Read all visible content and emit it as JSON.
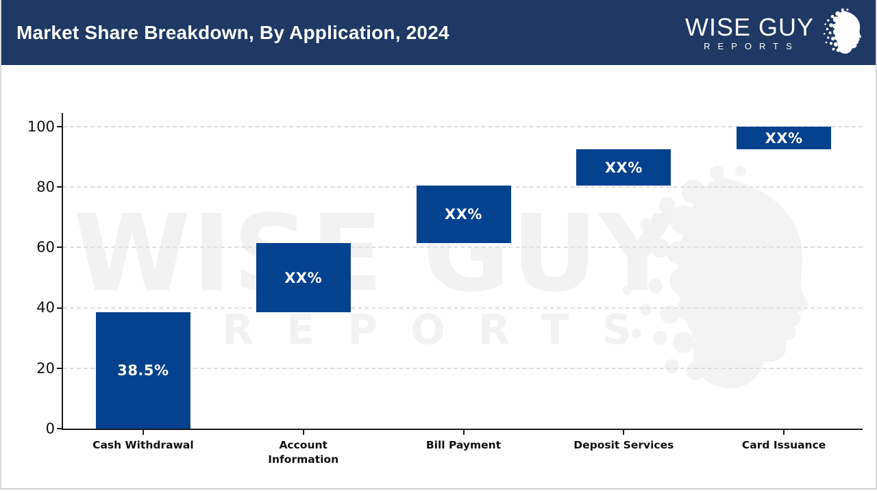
{
  "header": {
    "title": "Market Share Breakdown, By Application, 2024",
    "bg_color": "#1f3864",
    "logo": {
      "line1": "WISE GUY",
      "line2": "REPORTS",
      "face_icon": "dotted-face-profile"
    }
  },
  "watermark": {
    "line1": "WISE GUY",
    "line2": "REPORTS"
  },
  "chart_data": {
    "type": "bar",
    "subtype": "waterfall",
    "title": "Market Share Breakdown, By Application, 2024",
    "categories": [
      "Cash Withdrawal",
      "Account\nInformation",
      "Bill Payment",
      "Deposit Services",
      "Card Issuance"
    ],
    "segments": [
      [
        0,
        38.5
      ],
      [
        38.5,
        61.5
      ],
      [
        61.5,
        80.5
      ],
      [
        80.5,
        92.5
      ],
      [
        92.5,
        100
      ]
    ],
    "bar_labels": [
      "38.5%",
      "XX%",
      "XX%",
      "XX%",
      "XX%"
    ],
    "xlabel": "",
    "ylabel": "",
    "ylim": [
      0,
      105
    ],
    "yticks": [
      0,
      20,
      40,
      60,
      80,
      100
    ],
    "bar_color": "#04418f",
    "grid": "dashed-horizontal",
    "legend": "none"
  }
}
